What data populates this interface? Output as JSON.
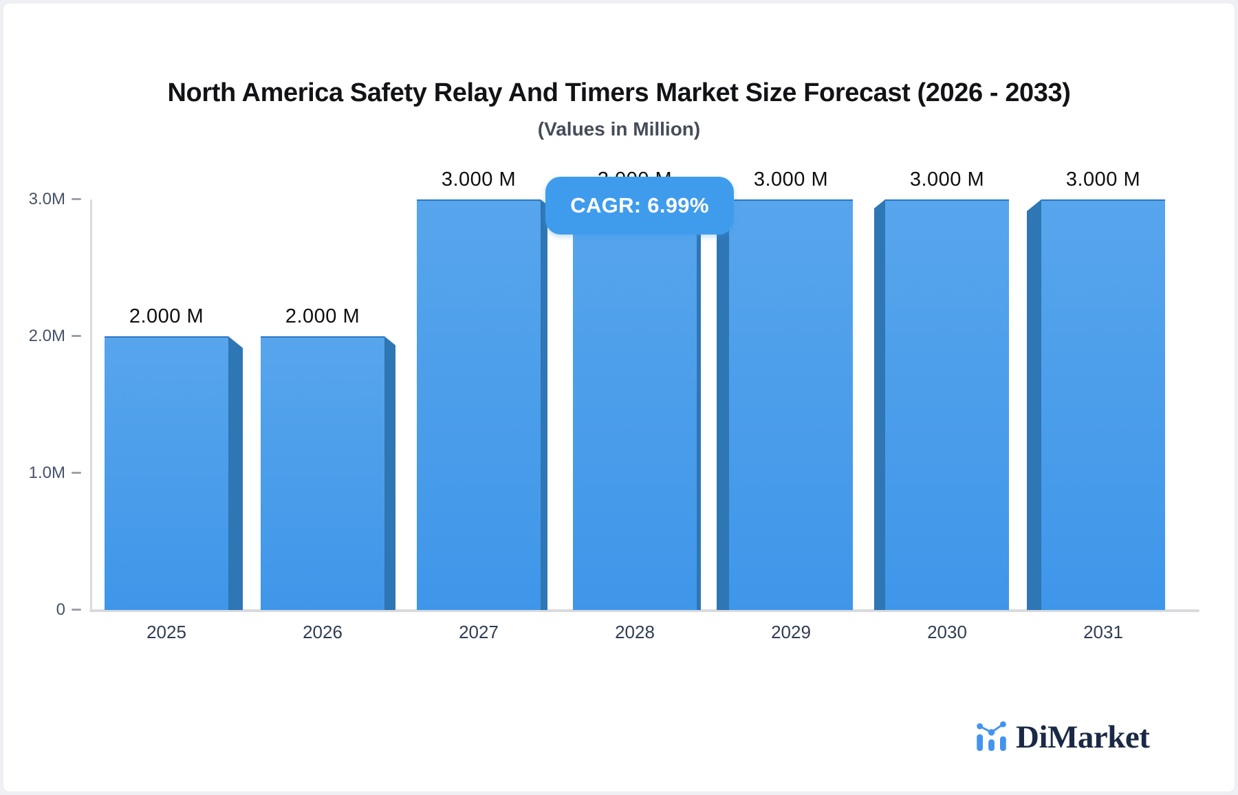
{
  "header": {
    "title": "North America Safety Relay And Timers Market Size Forecast (2026 - 2033)",
    "subtitle": "(Values in Million)"
  },
  "badge": {
    "label": "CAGR: 6.99%"
  },
  "brand": {
    "name": "DiMarket",
    "icon": "bar-chart-logo-icon"
  },
  "chart_data": {
    "type": "bar",
    "title": "North America Safety Relay And Timers Market Size Forecast (2026 - 2033)",
    "subtitle": "(Values in Million)",
    "categories": [
      "2025",
      "2026",
      "2027",
      "2028",
      "2029",
      "2030",
      "2031"
    ],
    "values": [
      2.0,
      2.0,
      3.0,
      3.0,
      3.0,
      3.0,
      3.0
    ],
    "value_labels": [
      "2.000 M",
      "2.000 M",
      "3.000 M",
      "3.000 M",
      "3.000 M",
      "3.000 M",
      "3.000 M"
    ],
    "xlabel": "",
    "ylabel": "",
    "ylim": [
      0,
      3
    ],
    "yticks": [
      {
        "label": "0",
        "value": 0
      },
      {
        "label": "1.0M",
        "value": 1
      },
      {
        "label": "2.0M",
        "value": 2
      },
      {
        "label": "3.0M",
        "value": 3
      }
    ],
    "grid": false,
    "legend": "none",
    "annotations": [
      "CAGR: 6.99%"
    ],
    "colors": {
      "bar_face_top": "#57a5ec",
      "bar_face_bottom": "#3f96e9",
      "bar_side": "#2e76b4",
      "accent": "#3f9ced",
      "axis": "#d8dade",
      "tick": "#9ba1ac"
    }
  }
}
